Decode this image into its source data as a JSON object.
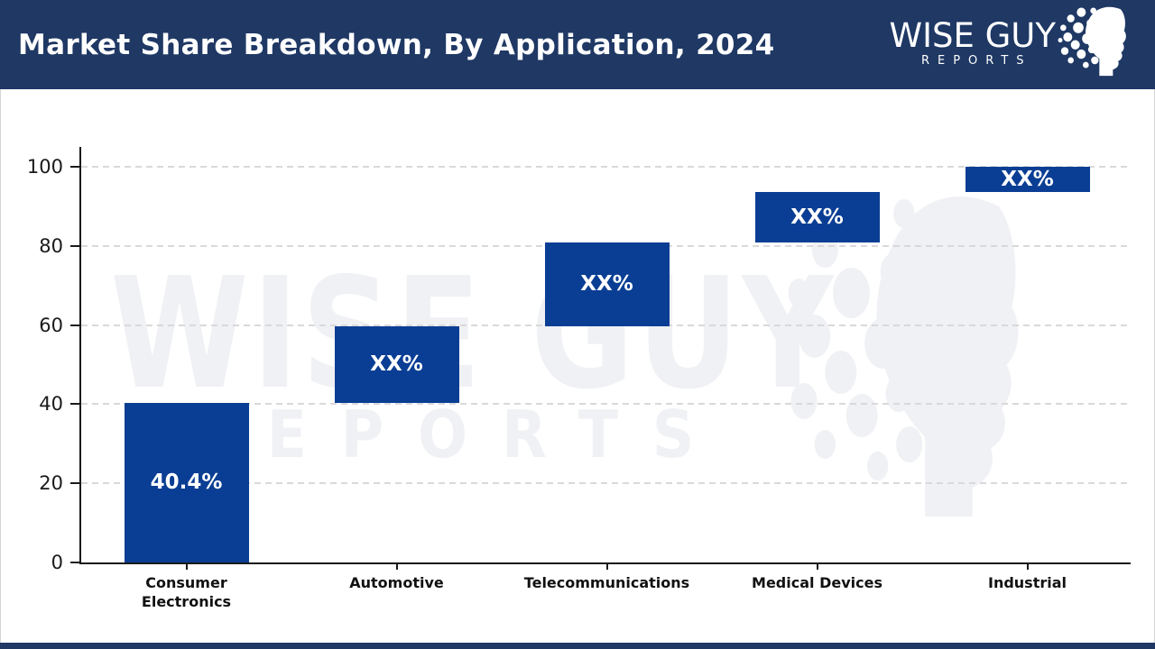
{
  "header": {
    "title": "Market Share Breakdown, By Application, 2024",
    "logo": {
      "name": "WISE GUY",
      "subname": "REPORTS"
    }
  },
  "watermark": {
    "name": "WISE GUY",
    "subname": "REPORTS"
  },
  "colors": {
    "header_bg": "#1f3864",
    "bar": "#0a3e94",
    "bar_label": "#ffffff",
    "grid": "#d9d9d9",
    "axis": "#1a1a1a",
    "watermark": "#f0f1f4"
  },
  "chart_data": {
    "type": "bar",
    "subtype": "waterfall",
    "title": "Market Share Breakdown, By Application, 2024",
    "unit": "%",
    "categories": [
      "Consumer\nElectronics",
      "Automotive",
      "Telecommunications",
      "Medical Devices",
      "Industrial"
    ],
    "segments": [
      {
        "category": "Consumer Electronics",
        "start": 0,
        "end": 40.4,
        "value": 40.4,
        "label": "40.4%"
      },
      {
        "category": "Automotive",
        "start": 40.4,
        "end": 59.7,
        "value": 19.3,
        "label": "XX%"
      },
      {
        "category": "Telecommunications",
        "start": 59.7,
        "end": 80.9,
        "value": 21.2,
        "label": "XX%"
      },
      {
        "category": "Medical Devices",
        "start": 80.9,
        "end": 93.6,
        "value": 12.7,
        "label": "XX%"
      },
      {
        "category": "Industrial",
        "start": 93.6,
        "end": 100,
        "value": 6.4,
        "label": "XX%"
      }
    ],
    "xlabel": "",
    "ylabel": "",
    "yticks": [
      0,
      20,
      40,
      60,
      80,
      100
    ],
    "ylim": [
      0,
      105.5
    ],
    "grid": "horizontal-dashed",
    "legend": "none"
  }
}
